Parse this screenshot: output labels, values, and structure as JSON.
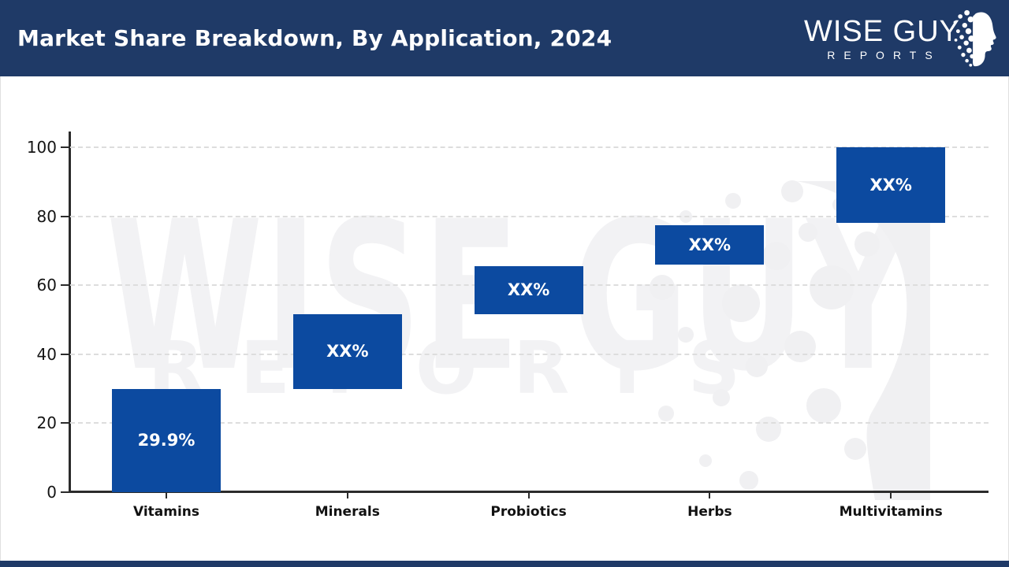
{
  "header": {
    "title": "Market Share Breakdown, By Application, 2024",
    "logo": {
      "wordmark": "WISE GUY",
      "subtitle": "REPORTS"
    }
  },
  "watermark": {
    "wordmark": "WISE GUY",
    "subtitle": "REPORTS"
  },
  "colors": {
    "header_bg": "#1F3A67",
    "footer_bg": "#1F3A67",
    "bar": "#0C4AA0",
    "bar_label": "#FFFFFF",
    "gridline": "#DDDDDD",
    "axis": "#2B2B2B",
    "tick_label": "#141414",
    "watermark": "#F2F2F4"
  },
  "chart_data": {
    "type": "bar",
    "subtype": "waterfall",
    "title": "Market Share Breakdown, By Application, 2024",
    "categories": [
      "Vitamins",
      "Minerals",
      "Probiotics",
      "Herbs",
      "Multivitamins"
    ],
    "segments": [
      {
        "category": "Vitamins",
        "start": 0,
        "end": 29.9,
        "label": "29.9%"
      },
      {
        "category": "Minerals",
        "start": 29.9,
        "end": 51.5,
        "label": "XX%"
      },
      {
        "category": "Probiotics",
        "start": 51.6,
        "end": 65.5,
        "label": "XX%"
      },
      {
        "category": "Herbs",
        "start": 66.0,
        "end": 77.4,
        "label": "XX%"
      },
      {
        "category": "Multivitamins",
        "start": 78.1,
        "end": 100,
        "label": "XX%"
      }
    ],
    "xlabel": "",
    "ylabel": "",
    "ylim": [
      0,
      100
    ],
    "yticks": [
      0,
      20,
      40,
      60,
      80,
      100
    ],
    "grid": "horizontal-dashed",
    "legend": "none",
    "values_masked_as": "XX%"
  }
}
